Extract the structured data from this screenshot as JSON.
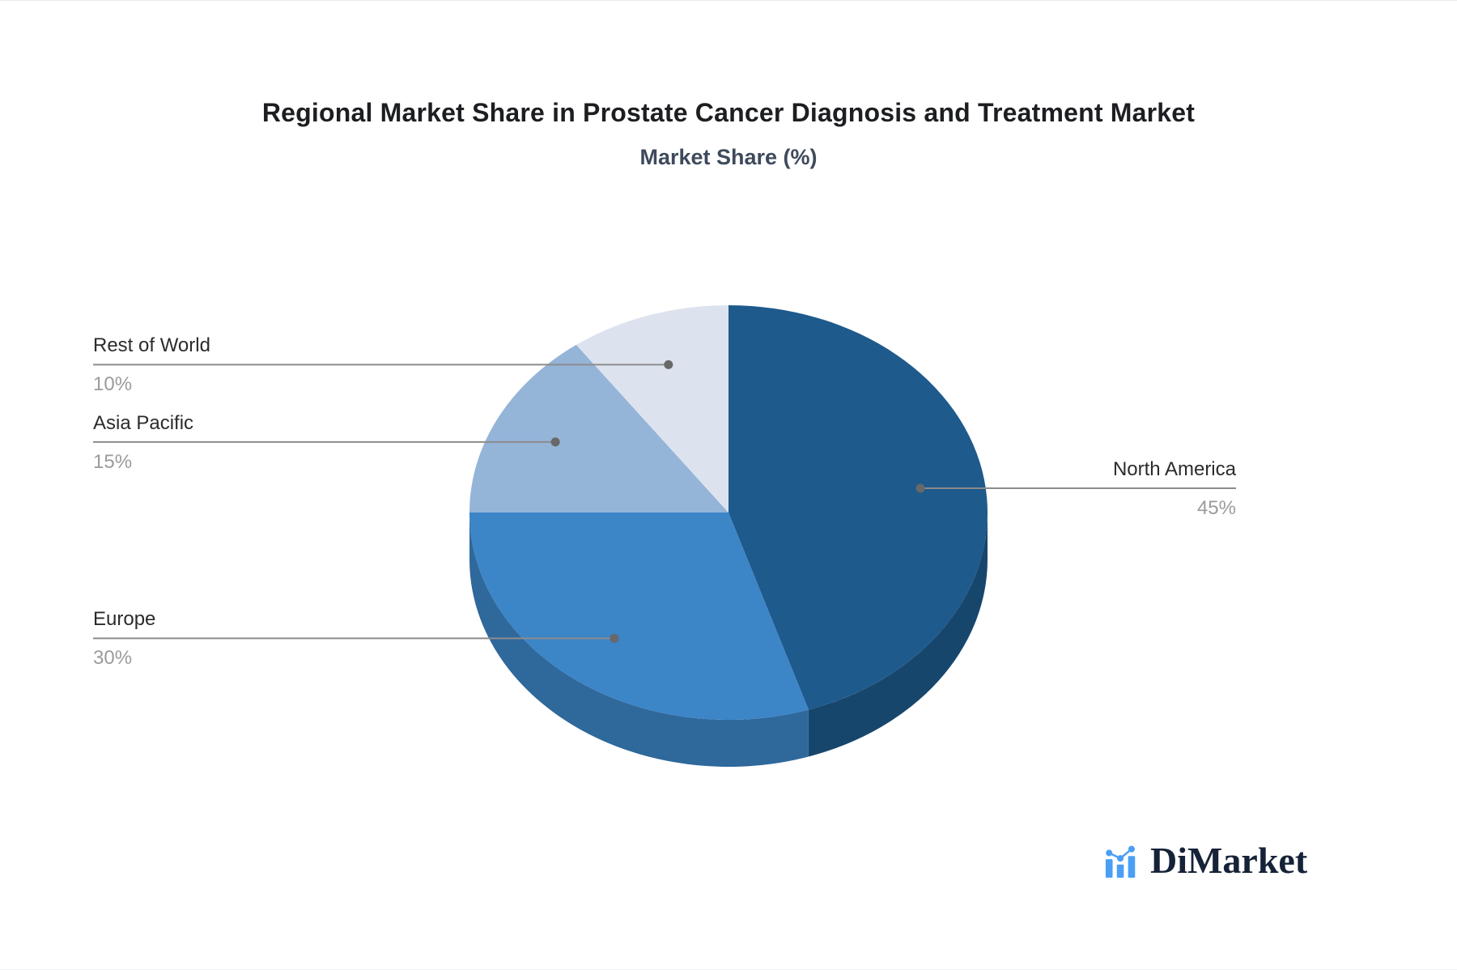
{
  "header": {
    "title": "Regional Market Share in Prostate Cancer Diagnosis and Treatment Market",
    "subtitle": "Market Share (%)"
  },
  "chart_data": {
    "type": "pie",
    "title": "Regional Market Share in Prostate Cancer Diagnosis and Treatment Market",
    "subtitle": "Market Share (%)",
    "unit": "%",
    "effect": "3d",
    "start_angle_deg": 0,
    "direction": "clockwise",
    "legend_position": "none",
    "slices": [
      {
        "label": "North America",
        "value": 45,
        "pct_label": "45%",
        "color": "#1e5a8c"
      },
      {
        "label": "Europe",
        "value": 30,
        "pct_label": "30%",
        "color": "#3c85c7"
      },
      {
        "label": "Asia Pacific",
        "value": 15,
        "pct_label": "15%",
        "color": "#94b4d8"
      },
      {
        "label": "Rest of World",
        "value": 10,
        "pct_label": "10%",
        "color": "#dde3ee"
      }
    ],
    "leader_line_color": "#8c8c8c",
    "leader_dot_color": "#686868",
    "label_color": "#2b2b2b",
    "pct_color": "#9b9b9b"
  },
  "branding": {
    "logo_text": "DiMarket",
    "logo_icon": "bar-line-chart-icon",
    "logo_text_color": "#152238",
    "logo_icon_color": "#4a9ff5"
  }
}
